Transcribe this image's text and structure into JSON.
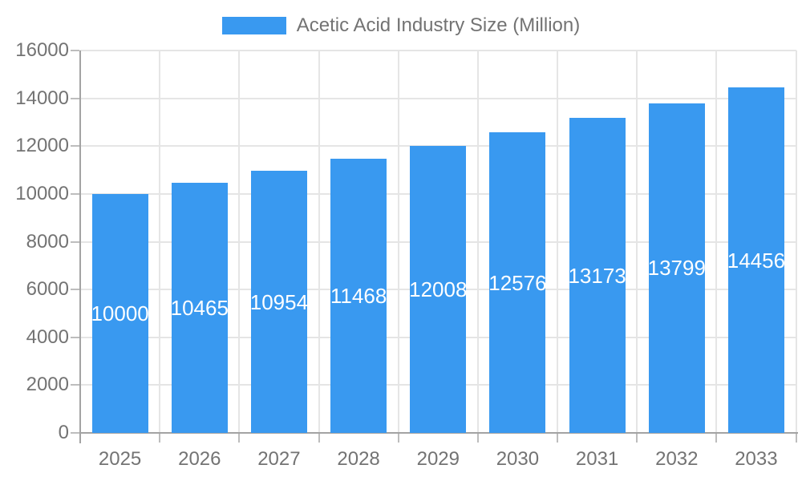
{
  "chart_data": {
    "type": "bar",
    "title": "Acetic Acid Industry Size (Million)",
    "legend_position": "top",
    "categories": [
      "2025",
      "2026",
      "2027",
      "2028",
      "2029",
      "2030",
      "2031",
      "2032",
      "2033"
    ],
    "values": [
      10000,
      10465,
      10954,
      11468,
      12008,
      12576,
      13173,
      13799,
      14456
    ],
    "series": [
      {
        "name": "Acetic Acid Industry Size (Million)",
        "values": [
          10000,
          10465,
          10954,
          11468,
          12008,
          12576,
          13173,
          13799,
          14456
        ]
      }
    ],
    "xlabel": "",
    "ylabel": "",
    "ylim": [
      0,
      16000
    ],
    "y_ticks": [
      0,
      2000,
      4000,
      6000,
      8000,
      10000,
      12000,
      14000,
      16000
    ],
    "grid": true,
    "value_labels_shown": true,
    "colors": {
      "bar": "#3999F0",
      "value_label": "#FFFFFF",
      "tick_label": "#737373",
      "legend_label": "#737373",
      "grid_line": "#E5E5E5",
      "tick_mark": "#BDBDBD",
      "axis_line": "#A3A3A3",
      "background": "#FFFFFF"
    }
  }
}
